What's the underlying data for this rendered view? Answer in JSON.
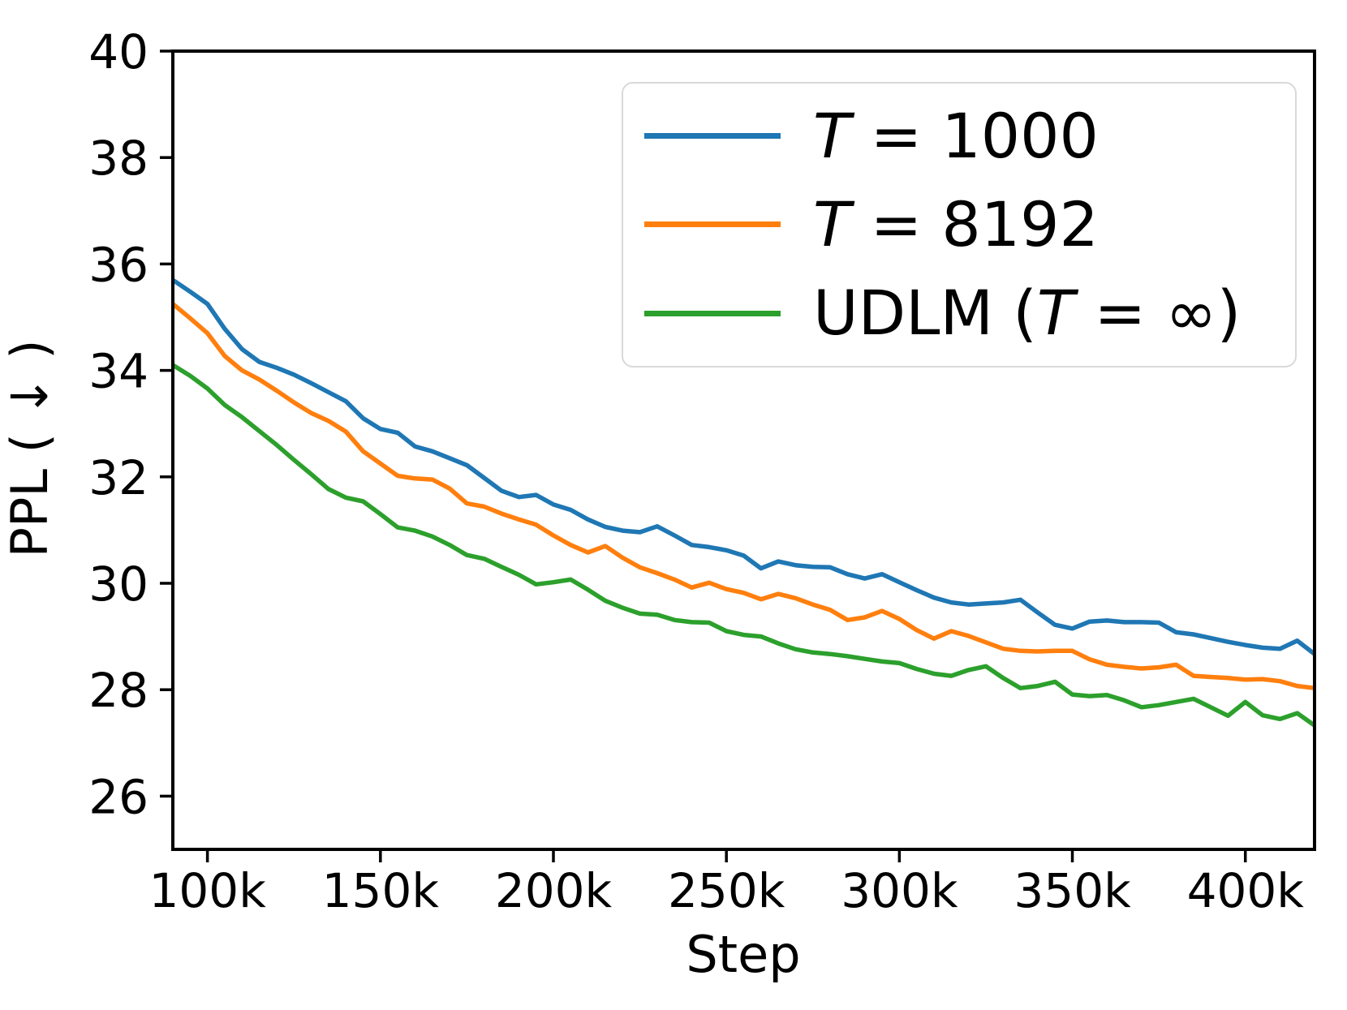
{
  "figure": {
    "xlabel": "Step",
    "ylabel": "PPL ( ↓ )",
    "background_color": "#ffffff",
    "axis_color": "#000000"
  },
  "chart_data": {
    "type": "line",
    "title": "",
    "xlabel": "Step",
    "ylabel": "PPL ( ↓ )",
    "x_unit": "thousands of steps",
    "xlim": [
      90,
      420
    ],
    "ylim": [
      25,
      40
    ],
    "grid": false,
    "legend_position": "upper right",
    "x_ticks": [
      {
        "value": 100,
        "label": "100k"
      },
      {
        "value": 150,
        "label": "150k"
      },
      {
        "value": 200,
        "label": "200k"
      },
      {
        "value": 250,
        "label": "250k"
      },
      {
        "value": 300,
        "label": "300k"
      },
      {
        "value": 350,
        "label": "350k"
      },
      {
        "value": 400,
        "label": "400k"
      }
    ],
    "y_ticks": [
      {
        "value": 26,
        "label": "26"
      },
      {
        "value": 28,
        "label": "28"
      },
      {
        "value": 30,
        "label": "30"
      },
      {
        "value": 32,
        "label": "32"
      },
      {
        "value": 34,
        "label": "34"
      },
      {
        "value": 36,
        "label": "36"
      },
      {
        "value": 38,
        "label": "38"
      },
      {
        "value": 40,
        "label": "40"
      }
    ],
    "x": [
      90,
      95,
      100,
      105,
      110,
      115,
      120,
      125,
      130,
      135,
      140,
      145,
      150,
      155,
      160,
      165,
      170,
      175,
      180,
      185,
      190,
      195,
      200,
      205,
      210,
      215,
      220,
      225,
      230,
      235,
      240,
      245,
      250,
      255,
      260,
      265,
      270,
      275,
      280,
      285,
      290,
      295,
      300,
      305,
      310,
      315,
      320,
      325,
      330,
      335,
      340,
      345,
      350,
      355,
      360,
      365,
      370,
      375,
      380,
      385,
      390,
      395,
      400,
      405,
      410,
      415,
      420
    ],
    "series": [
      {
        "name": "T = 1000",
        "name_segments": [
          {
            "text": "T",
            "italic": true
          },
          {
            "text": " = 1000",
            "italic": false
          }
        ],
        "color": "#1f77b4",
        "values": [
          35.7,
          35.48,
          35.25,
          34.78,
          34.4,
          34.16,
          34.05,
          33.92,
          33.76,
          33.59,
          33.42,
          33.1,
          32.9,
          32.83,
          32.57,
          32.48,
          32.35,
          32.22,
          31.98,
          31.74,
          31.62,
          31.66,
          31.48,
          31.38,
          31.2,
          31.06,
          30.99,
          30.96,
          31.07,
          30.9,
          30.72,
          30.68,
          30.62,
          30.52,
          30.28,
          30.41,
          30.34,
          30.31,
          30.3,
          30.17,
          30.09,
          30.17,
          30.02,
          29.87,
          29.73,
          29.64,
          29.6,
          29.62,
          29.64,
          29.69,
          29.45,
          29.22,
          29.15,
          29.28,
          29.3,
          29.27,
          29.27,
          29.26,
          29.08,
          29.04,
          28.97,
          28.9,
          28.84,
          28.79,
          28.77,
          28.92,
          28.67
        ]
      },
      {
        "name": "T = 8192",
        "name_segments": [
          {
            "text": "T",
            "italic": true
          },
          {
            "text": " = 8192",
            "italic": false
          }
        ],
        "color": "#ff7f0e",
        "values": [
          35.25,
          34.98,
          34.7,
          34.27,
          34.0,
          33.83,
          33.62,
          33.4,
          33.2,
          33.05,
          32.85,
          32.48,
          32.25,
          32.02,
          31.97,
          31.95,
          31.78,
          31.5,
          31.44,
          31.31,
          31.2,
          31.1,
          30.9,
          30.72,
          30.58,
          30.7,
          30.48,
          30.3,
          30.19,
          30.07,
          29.92,
          30.01,
          29.89,
          29.82,
          29.7,
          29.8,
          29.72,
          29.6,
          29.5,
          29.31,
          29.36,
          29.48,
          29.33,
          29.12,
          28.96,
          29.1,
          29.01,
          28.89,
          28.77,
          28.73,
          28.72,
          28.73,
          28.73,
          28.57,
          28.47,
          28.43,
          28.4,
          28.42,
          28.47,
          28.26,
          28.24,
          28.22,
          28.19,
          28.2,
          28.16,
          28.07,
          28.03
        ]
      },
      {
        "name": "UDLM (T = ∞)",
        "name_segments": [
          {
            "text": "UDLM (",
            "italic": false
          },
          {
            "text": "T",
            "italic": true
          },
          {
            "text": " = ∞)",
            "italic": false
          }
        ],
        "color": "#2ca02c",
        "values": [
          34.1,
          33.9,
          33.66,
          33.35,
          33.12,
          32.86,
          32.6,
          32.32,
          32.05,
          31.77,
          31.61,
          31.54,
          31.3,
          31.05,
          30.99,
          30.88,
          30.72,
          30.53,
          30.46,
          30.31,
          30.16,
          29.98,
          30.02,
          30.07,
          29.88,
          29.67,
          29.54,
          29.43,
          29.41,
          29.31,
          29.27,
          29.26,
          29.1,
          29.03,
          29.0,
          28.87,
          28.76,
          28.7,
          28.67,
          28.63,
          28.58,
          28.53,
          28.5,
          28.39,
          28.3,
          28.26,
          28.37,
          28.44,
          28.22,
          28.03,
          28.07,
          28.15,
          27.91,
          27.88,
          27.9,
          27.8,
          27.67,
          27.71,
          27.77,
          27.83,
          27.67,
          27.51,
          27.77,
          27.52,
          27.45,
          27.56,
          27.33
        ]
      }
    ]
  }
}
